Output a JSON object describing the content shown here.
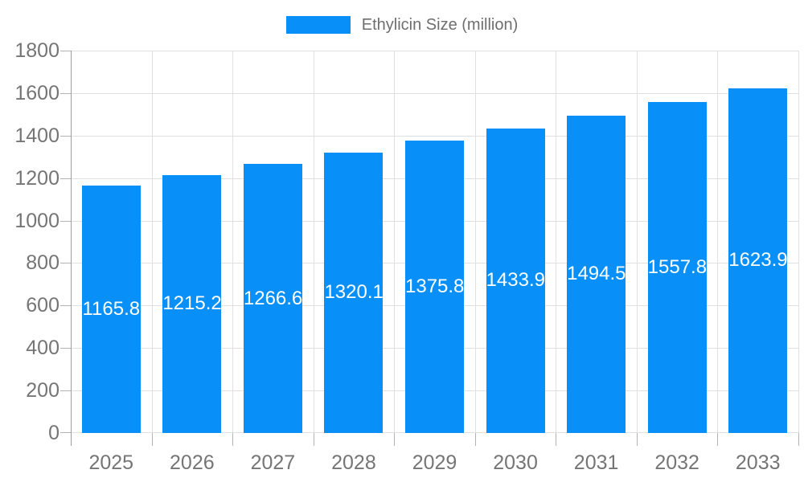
{
  "chart_data": {
    "type": "bar",
    "title": "",
    "legend": {
      "label": "Ethylicin Size (million)",
      "position": "top"
    },
    "categories": [
      "2025",
      "2026",
      "2027",
      "2028",
      "2029",
      "2030",
      "2031",
      "2032",
      "2033"
    ],
    "series": [
      {
        "name": "Ethylicin Size (million)",
        "values": [
          1165.8,
          1215.2,
          1266.6,
          1320.1,
          1375.8,
          1433.9,
          1494.5,
          1557.8,
          1623.9
        ]
      }
    ],
    "value_labels": [
      "1165.8",
      "1215.2",
      "1266.6",
      "1320.1",
      "1375.8",
      "1433.9",
      "1494.5",
      "1557.8",
      "1623.9"
    ],
    "value_label_position": "inside-center",
    "xlabel": "",
    "ylabel": "",
    "ylim": [
      0,
      1800
    ],
    "yticks": [
      0,
      200,
      400,
      600,
      800,
      1000,
      1200,
      1400,
      1600,
      1800
    ],
    "grid": "horizontal and vertical category boundaries",
    "legend_position": "top-center"
  },
  "colors": {
    "bar": "#0890F8",
    "grid": "#e0e0e0",
    "axis_line": "#9e9e9e",
    "tick": "#b3b3b3",
    "axis_text": "#757575",
    "legend_text": "#6e6e6e",
    "value_label_text": "#ffffff",
    "background": "#ffffff"
  }
}
